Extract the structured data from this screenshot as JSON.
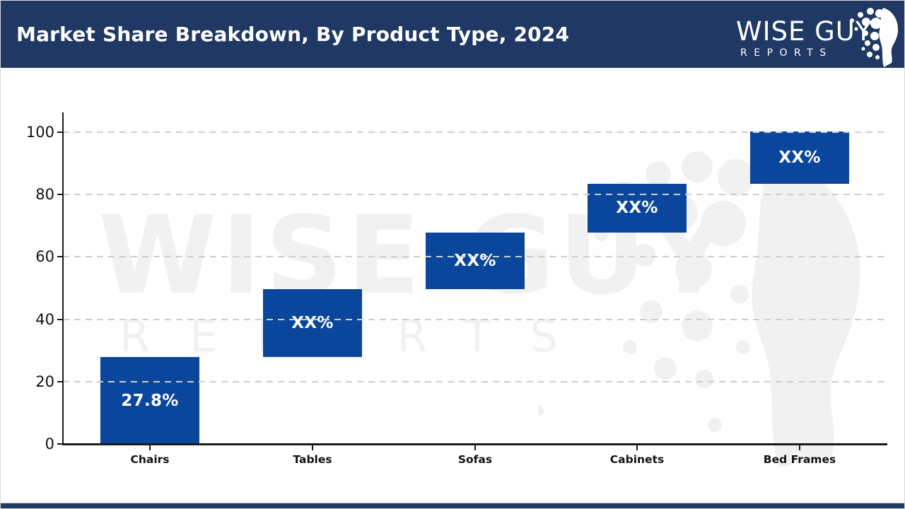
{
  "header": {
    "title": "Market Share Breakdown, By Product Type, 2024",
    "logo": {
      "line1": "WISE GUY",
      "line2": "REPORTS"
    }
  },
  "watermark": {
    "line1": "WISE GUY",
    "line2": "REPORTS"
  },
  "chart_data": {
    "type": "bar",
    "variant": "waterfall",
    "title": "Market Share Breakdown, By Product Type, 2024",
    "categories": [
      "Chairs",
      "Tables",
      "Sofas",
      "Cabinets",
      "Bed Frames"
    ],
    "segments": [
      {
        "category": "Chairs",
        "start": 0,
        "end": 27.8,
        "label": "27.8%"
      },
      {
        "category": "Tables",
        "start": 27.8,
        "end": 49.6,
        "label": "XX%"
      },
      {
        "category": "Sofas",
        "start": 49.6,
        "end": 67.8,
        "label": "XX%"
      },
      {
        "category": "Cabinets",
        "start": 67.8,
        "end": 83.5,
        "label": "XX%"
      },
      {
        "category": "Bed Frames",
        "start": 83.5,
        "end": 100.2,
        "label": "XX%"
      }
    ],
    "yticks": [
      0,
      20,
      40,
      60,
      80,
      100
    ],
    "ylim": [
      0,
      106
    ],
    "xlabel": "",
    "ylabel": "",
    "grid": "horizontal-dashed",
    "legend": "none"
  },
  "colors": {
    "header_bg": "#1f3864",
    "footer_bg": "#1f3864",
    "bar": "#0b469d",
    "bar_label": "#ffffff",
    "grid": "#cdcdcd",
    "axis": "#1a1a1a",
    "watermark": "#f1f1f1"
  }
}
